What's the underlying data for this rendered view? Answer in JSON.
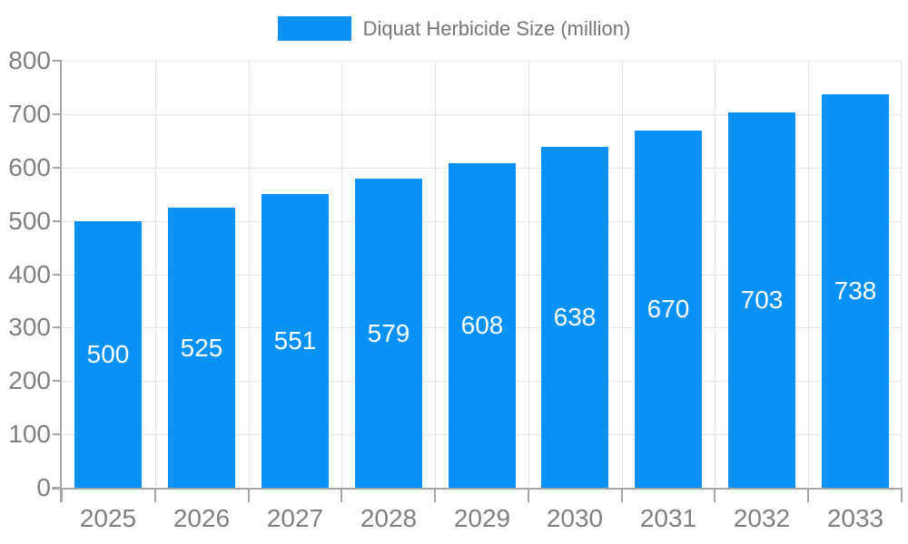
{
  "chart_data": {
    "type": "bar",
    "title": "",
    "legend": {
      "label": "Diquat Herbicide Size (million)",
      "position": "top"
    },
    "categories": [
      "2025",
      "2026",
      "2027",
      "2028",
      "2029",
      "2030",
      "2031",
      "2032",
      "2033"
    ],
    "series": [
      {
        "name": "Diquat Herbicide Size (million)",
        "values": [
          500,
          525,
          551,
          579,
          608,
          638,
          670,
          703,
          738
        ]
      }
    ],
    "bar_value_labels": [
      "500",
      "525",
      "551",
      "579",
      "608",
      "638",
      "670",
      "703",
      "738"
    ],
    "xlabel": "",
    "ylabel": "",
    "ylim": [
      0,
      800
    ],
    "ytick_step": 100,
    "yticks": [
      "0",
      "100",
      "200",
      "300",
      "400",
      "500",
      "600",
      "700",
      "800"
    ],
    "grid": true,
    "legend_position": "top-center",
    "colors": {
      "bar": "#0892f8",
      "bar_label": "#ffffff",
      "axis_label": "#808080",
      "legend_text": "#757575",
      "gridline": "#e6e6e6",
      "axis_line": "#a6a6a6"
    }
  }
}
